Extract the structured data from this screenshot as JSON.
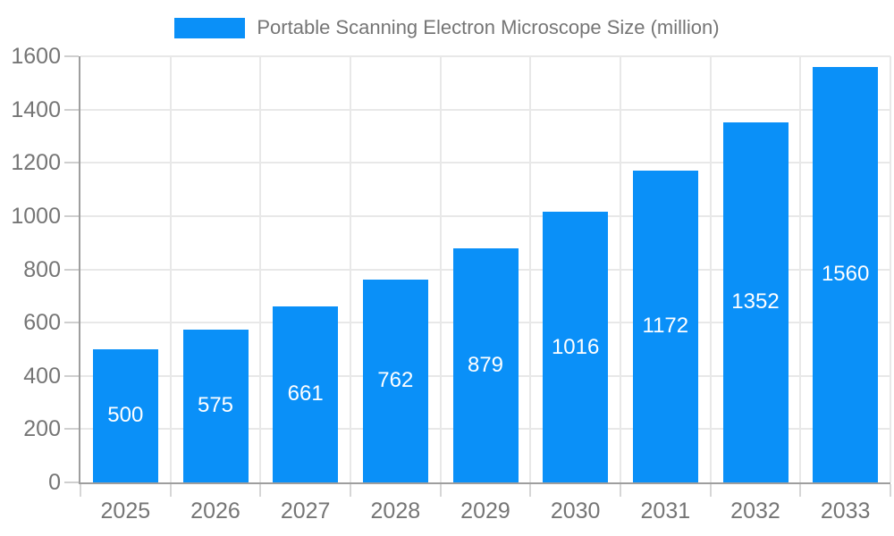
{
  "legend": {
    "label": "Portable Scanning Electron Microscope Size (million)"
  },
  "chart_data": {
    "type": "bar",
    "title": "Portable Scanning Electron Microscope Size (million)",
    "categories": [
      "2025",
      "2026",
      "2027",
      "2028",
      "2029",
      "2030",
      "2031",
      "2032",
      "2033"
    ],
    "values": [
      500,
      575,
      661,
      762,
      879,
      1016,
      1172,
      1352,
      1560
    ],
    "xlabel": "",
    "ylabel": "",
    "ylim": [
      0,
      1600
    ],
    "yticks": [
      0,
      200,
      400,
      600,
      800,
      1000,
      1200,
      1400,
      1600
    ],
    "grid": true,
    "legend_position": "top",
    "value_label_position": "inside-center",
    "bar_color": "#0a90f8",
    "value_label_color": "#ffffff",
    "axis_text_color": "#757575",
    "gridline_color": "#e8e8e8",
    "axis_line_color": "#9e9e9e"
  }
}
